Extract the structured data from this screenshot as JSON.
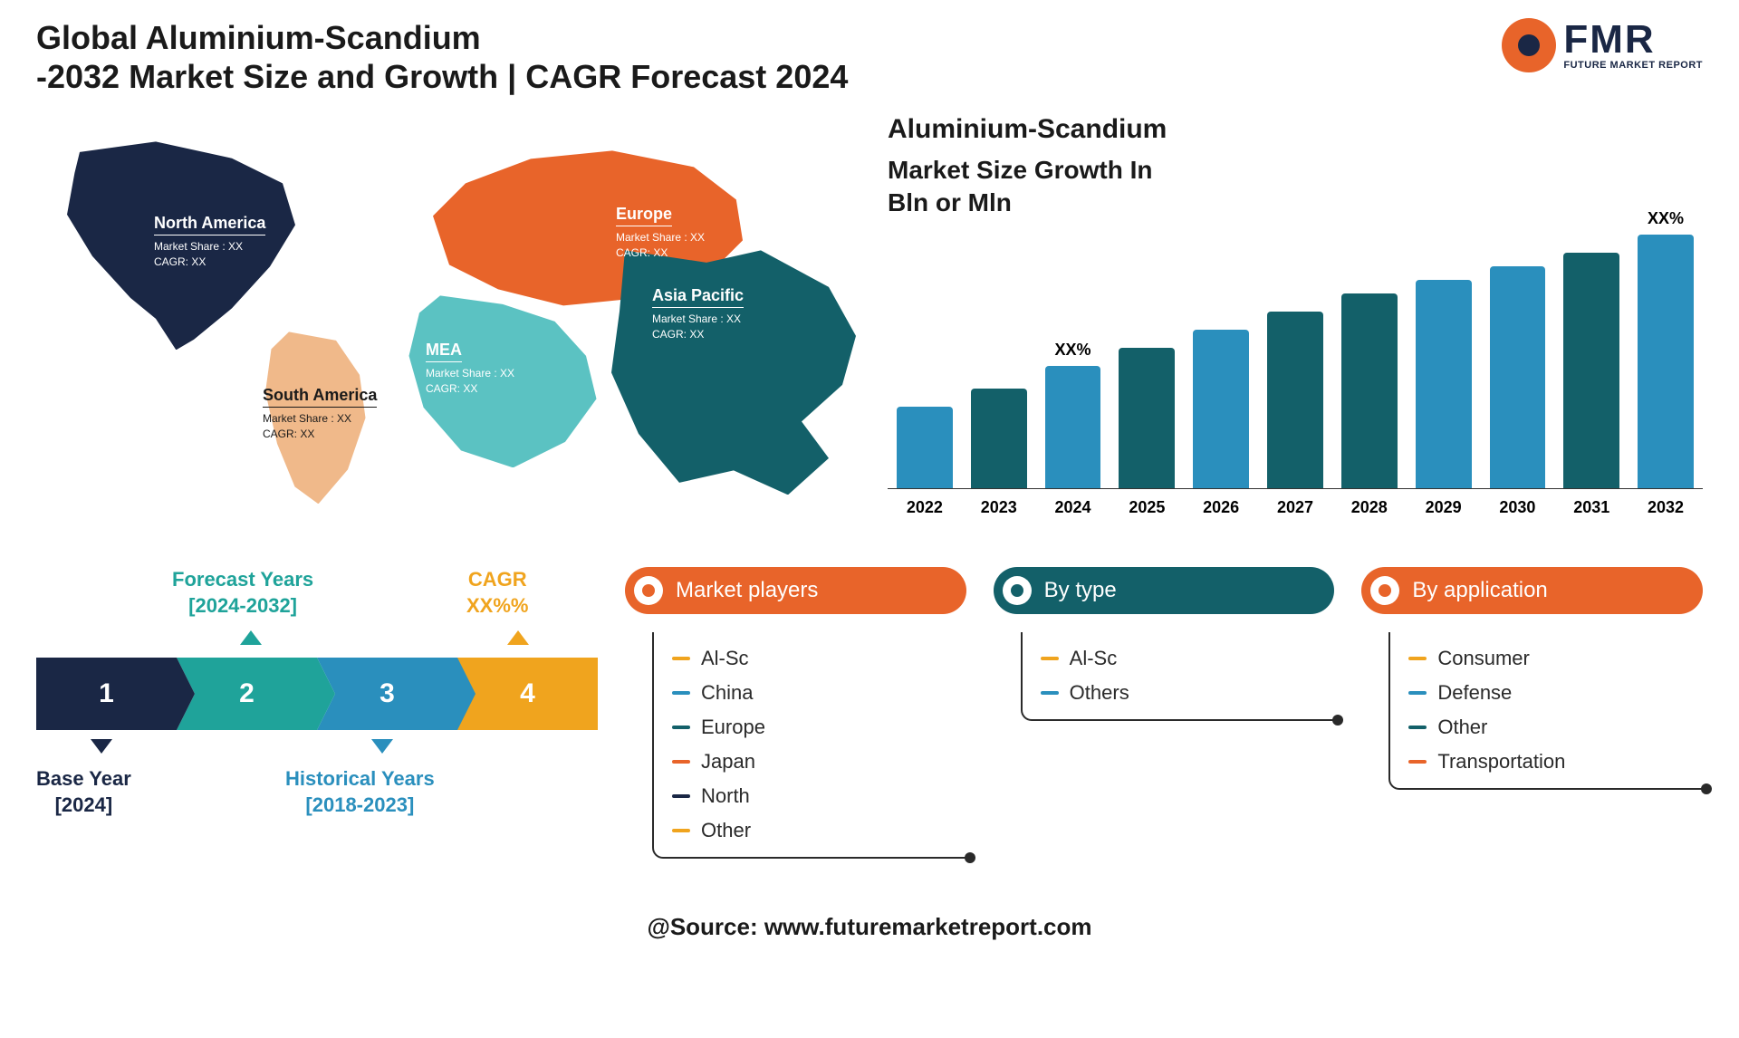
{
  "title": {
    "line1": "Global Aluminium-Scandium",
    "line2": "-2032 Market Size and Growth | CAGR Forecast 2024"
  },
  "logo": {
    "main": "FMR",
    "sub": "FUTURE MARKET REPORT"
  },
  "map": {
    "regions": {
      "north_america": {
        "label": "North America",
        "share": "Market Share : XX",
        "cagr": "CAGR: XX",
        "color": "#1a2745"
      },
      "south_america": {
        "label": "South America",
        "share": "Market Share : XX",
        "cagr": "CAGR: XX",
        "color": "#f0b98a",
        "text_color": "#1a1a1a"
      },
      "europe": {
        "label": "Europe",
        "share": "Market Share : XX",
        "cagr": "CAGR: XX",
        "color": "#e8642a"
      },
      "mea": {
        "label": "MEA",
        "share": "Market Share : XX",
        "cagr": "CAGR: XX",
        "color": "#5bc2c2"
      },
      "asia_pacific": {
        "label": "Asia Pacific",
        "share": "Market Share : XX",
        "cagr": "CAGR: XX",
        "color": "#136069"
      }
    }
  },
  "chart": {
    "title1": "Aluminium-Scandium",
    "title2": "Market Size Growth In",
    "title3": "Bln or Mln",
    "years": [
      "2022",
      "2023",
      "2024",
      "2025",
      "2026",
      "2027",
      "2028",
      "2029",
      "2030",
      "2031",
      "2032"
    ],
    "values": [
      90,
      110,
      135,
      155,
      175,
      195,
      215,
      230,
      245,
      260,
      280
    ],
    "colors": [
      "#2a8fbd",
      "#136069",
      "#2a8fbd",
      "#136069",
      "#2a8fbd",
      "#136069",
      "#136069",
      "#2a8fbd",
      "#2a8fbd",
      "#136069",
      "#2a8fbd"
    ],
    "max_height": 280,
    "anno_start": {
      "text": "XX%",
      "index": 2
    },
    "anno_end": {
      "text": "XX%",
      "index": 10
    }
  },
  "timeline": {
    "forecast": {
      "label": "Forecast Years",
      "range": "[2024-2032]",
      "color": "#1fa39a"
    },
    "cagr": {
      "label": "CAGR",
      "value": "XX%%",
      "color": "#f0a41e"
    },
    "base": {
      "label": "Base Year",
      "range": "[2024]",
      "color": "#1a2745"
    },
    "historical": {
      "label": "Historical Years",
      "range": "[2018-2023]",
      "color": "#2a8fbd"
    },
    "segments": [
      {
        "num": "1",
        "bg": "#1a2745"
      },
      {
        "num": "2",
        "bg": "#1fa39a"
      },
      {
        "num": "3",
        "bg": "#2a8fbd"
      },
      {
        "num": "4",
        "bg": "#f0a41e"
      }
    ]
  },
  "categories": {
    "market_players": {
      "header": "Market players",
      "bg": "#e8642a",
      "items": [
        {
          "label": "Al-Sc",
          "color": "#f0a41e"
        },
        {
          "label": "China",
          "color": "#2a8fbd"
        },
        {
          "label": "Europe",
          "color": "#136069"
        },
        {
          "label": "Japan",
          "color": "#e8642a"
        },
        {
          "label": "North",
          "color": "#1a2745"
        },
        {
          "label": "Other",
          "color": "#f0a41e"
        }
      ]
    },
    "by_type": {
      "header": "By type",
      "bg": "#136069",
      "items": [
        {
          "label": "Al-Sc",
          "color": "#f0a41e"
        },
        {
          "label": "Others",
          "color": "#2a8fbd"
        }
      ]
    },
    "by_application": {
      "header": "By application",
      "bg": "#e8642a",
      "items": [
        {
          "label": "Consumer",
          "color": "#f0a41e"
        },
        {
          "label": "Defense",
          "color": "#2a8fbd"
        },
        {
          "label": "Other",
          "color": "#136069"
        },
        {
          "label": "Transportation",
          "color": "#e8642a"
        }
      ]
    }
  },
  "source": "@Source: www.futuremarketreport.com"
}
